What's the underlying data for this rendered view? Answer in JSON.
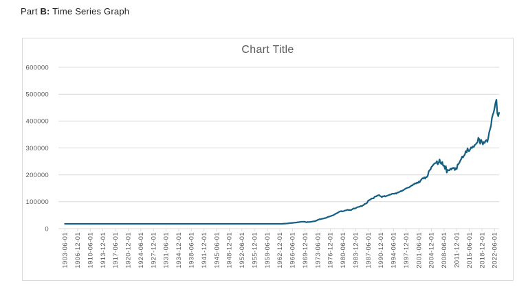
{
  "page": {
    "heading_prefix": "Part ",
    "heading_bold": "B:",
    "heading_rest": " Time Series Graph"
  },
  "chart_data": {
    "type": "line",
    "title": "Chart Title",
    "line_color": "#156082",
    "grid_color": "#d9d9d9",
    "axis_color": "#d9d9d9",
    "tick_label_color": "#595959",
    "title_color": "#595959",
    "ylim": [
      0,
      625000
    ],
    "yticks": [
      0,
      100000,
      200000,
      300000,
      400000,
      500000,
      600000
    ],
    "grid": true,
    "legend": "none",
    "x_tick_labels": [
      "1903-06-01",
      "1906-12-01",
      "1910-06-01",
      "1913-12-01",
      "1917-06-01",
      "1920-12-01",
      "1924-06-01",
      "1927-12-01",
      "1931-06-01",
      "1934-12-01",
      "1938-06-01",
      "1941-12-01",
      "1945-06-01",
      "1948-12-01",
      "1952-06-01",
      "1955-12-01",
      "1959-06-01",
      "1962-12-01",
      "1966-06-01",
      "1969-12-01",
      "1973-06-01",
      "1976-12-01",
      "1980-06-01",
      "1983-12-01",
      "1987-06-01",
      "1990-12-01",
      "1994-06-01",
      "1997-12-01",
      "2001-06-01",
      "2004-12-01",
      "2008-06-01",
      "2011-12-01",
      "2015-06-01",
      "2018-12-01",
      "2022-06-01"
    ],
    "flat_segment": {
      "start_date": "1903-06-01",
      "end_date": "1962-12-01",
      "value": 17800
    },
    "quarterly": {
      "start_date": "1963-03-01",
      "interval_months": 3,
      "values": [
        17800,
        18000,
        17900,
        18500,
        18500,
        18900,
        18900,
        19000,
        19600,
        20000,
        20300,
        20600,
        21000,
        21400,
        21700,
        22200,
        22400,
        22700,
        23300,
        24000,
        23900,
        24700,
        25100,
        25700,
        25600,
        25600,
        25900,
        25500,
        23900,
        23900,
        25000,
        24700,
        24900,
        25200,
        25400,
        26300,
        26800,
        27600,
        27700,
        29200,
        30200,
        32500,
        33400,
        34900,
        35000,
        35900,
        36900,
        37400,
        38100,
        39300,
        39500,
        41300,
        43000,
        44200,
        44900,
        46300,
        47100,
        48800,
        49300,
        51700,
        53000,
        55700,
        57000,
        58700,
        60800,
        62900,
        64400,
        65300,
        63700,
        64600,
        65300,
        67300,
        67800,
        68900,
        70200,
        69200,
        69300,
        69400,
        69000,
        71500,
        73500,
        75300,
        74800,
        75500,
        78200,
        79900,
        80600,
        81000,
        82800,
        84300,
        83200,
        86800,
        88000,
        92000,
        92500,
        94000,
        97400,
        104500,
        105600,
        107700,
        110000,
        112500,
        112500,
        113000,
        118000,
        120000,
        120000,
        123000,
        123900,
        125000,
        121500,
        120000,
        117000,
        120000,
        120000,
        122000,
        119500,
        121500,
        122000,
        124000,
        125000,
        126500,
        127000,
        129000,
        130000,
        130000,
        129500,
        132000,
        130000,
        133900,
        134000,
        136000,
        137000,
        140000,
        139000,
        142000,
        143000,
        146000,
        147900,
        150000,
        151500,
        152500,
        152900,
        155500,
        157500,
        161000,
        160500,
        165000,
        165300,
        169000,
        167500,
        171300,
        169800,
        175200,
        172600,
        179400,
        182900,
        187600,
        186000,
        190700,
        186000,
        191800,
        191900,
        197700,
        212700,
        217600,
        219600,
        229600,
        232500,
        237300,
        240900,
        243600,
        243800,
        251000,
        239100,
        244700,
        257400,
        245000,
        240300,
        247900,
        233900,
        234300,
        221900,
        232400,
        208400,
        219000,
        216700,
        216900,
        222900,
        219500,
        225500,
        224300,
        226900,
        217900,
        224800,
        221200,
        238400,
        240200,
        245400,
        253300,
        258400,
        268100,
        264800,
        271300,
        275200,
        288000,
        283200,
        298900,
        289200,
        288800,
        295800,
        302500,
        299800,
        306000,
        303800,
        310900,
        313100,
        318200,
        320500,
        337900,
        331800,
        315600,
        330600,
        322800,
        313000,
        322500,
        318400,
        327100,
        329000,
        322600,
        337500,
        358700,
        369800,
        382600,
        411200,
        423600,
        433100,
        449300,
        468000,
        479500,
        429000,
        418500,
        431000
      ]
    }
  }
}
